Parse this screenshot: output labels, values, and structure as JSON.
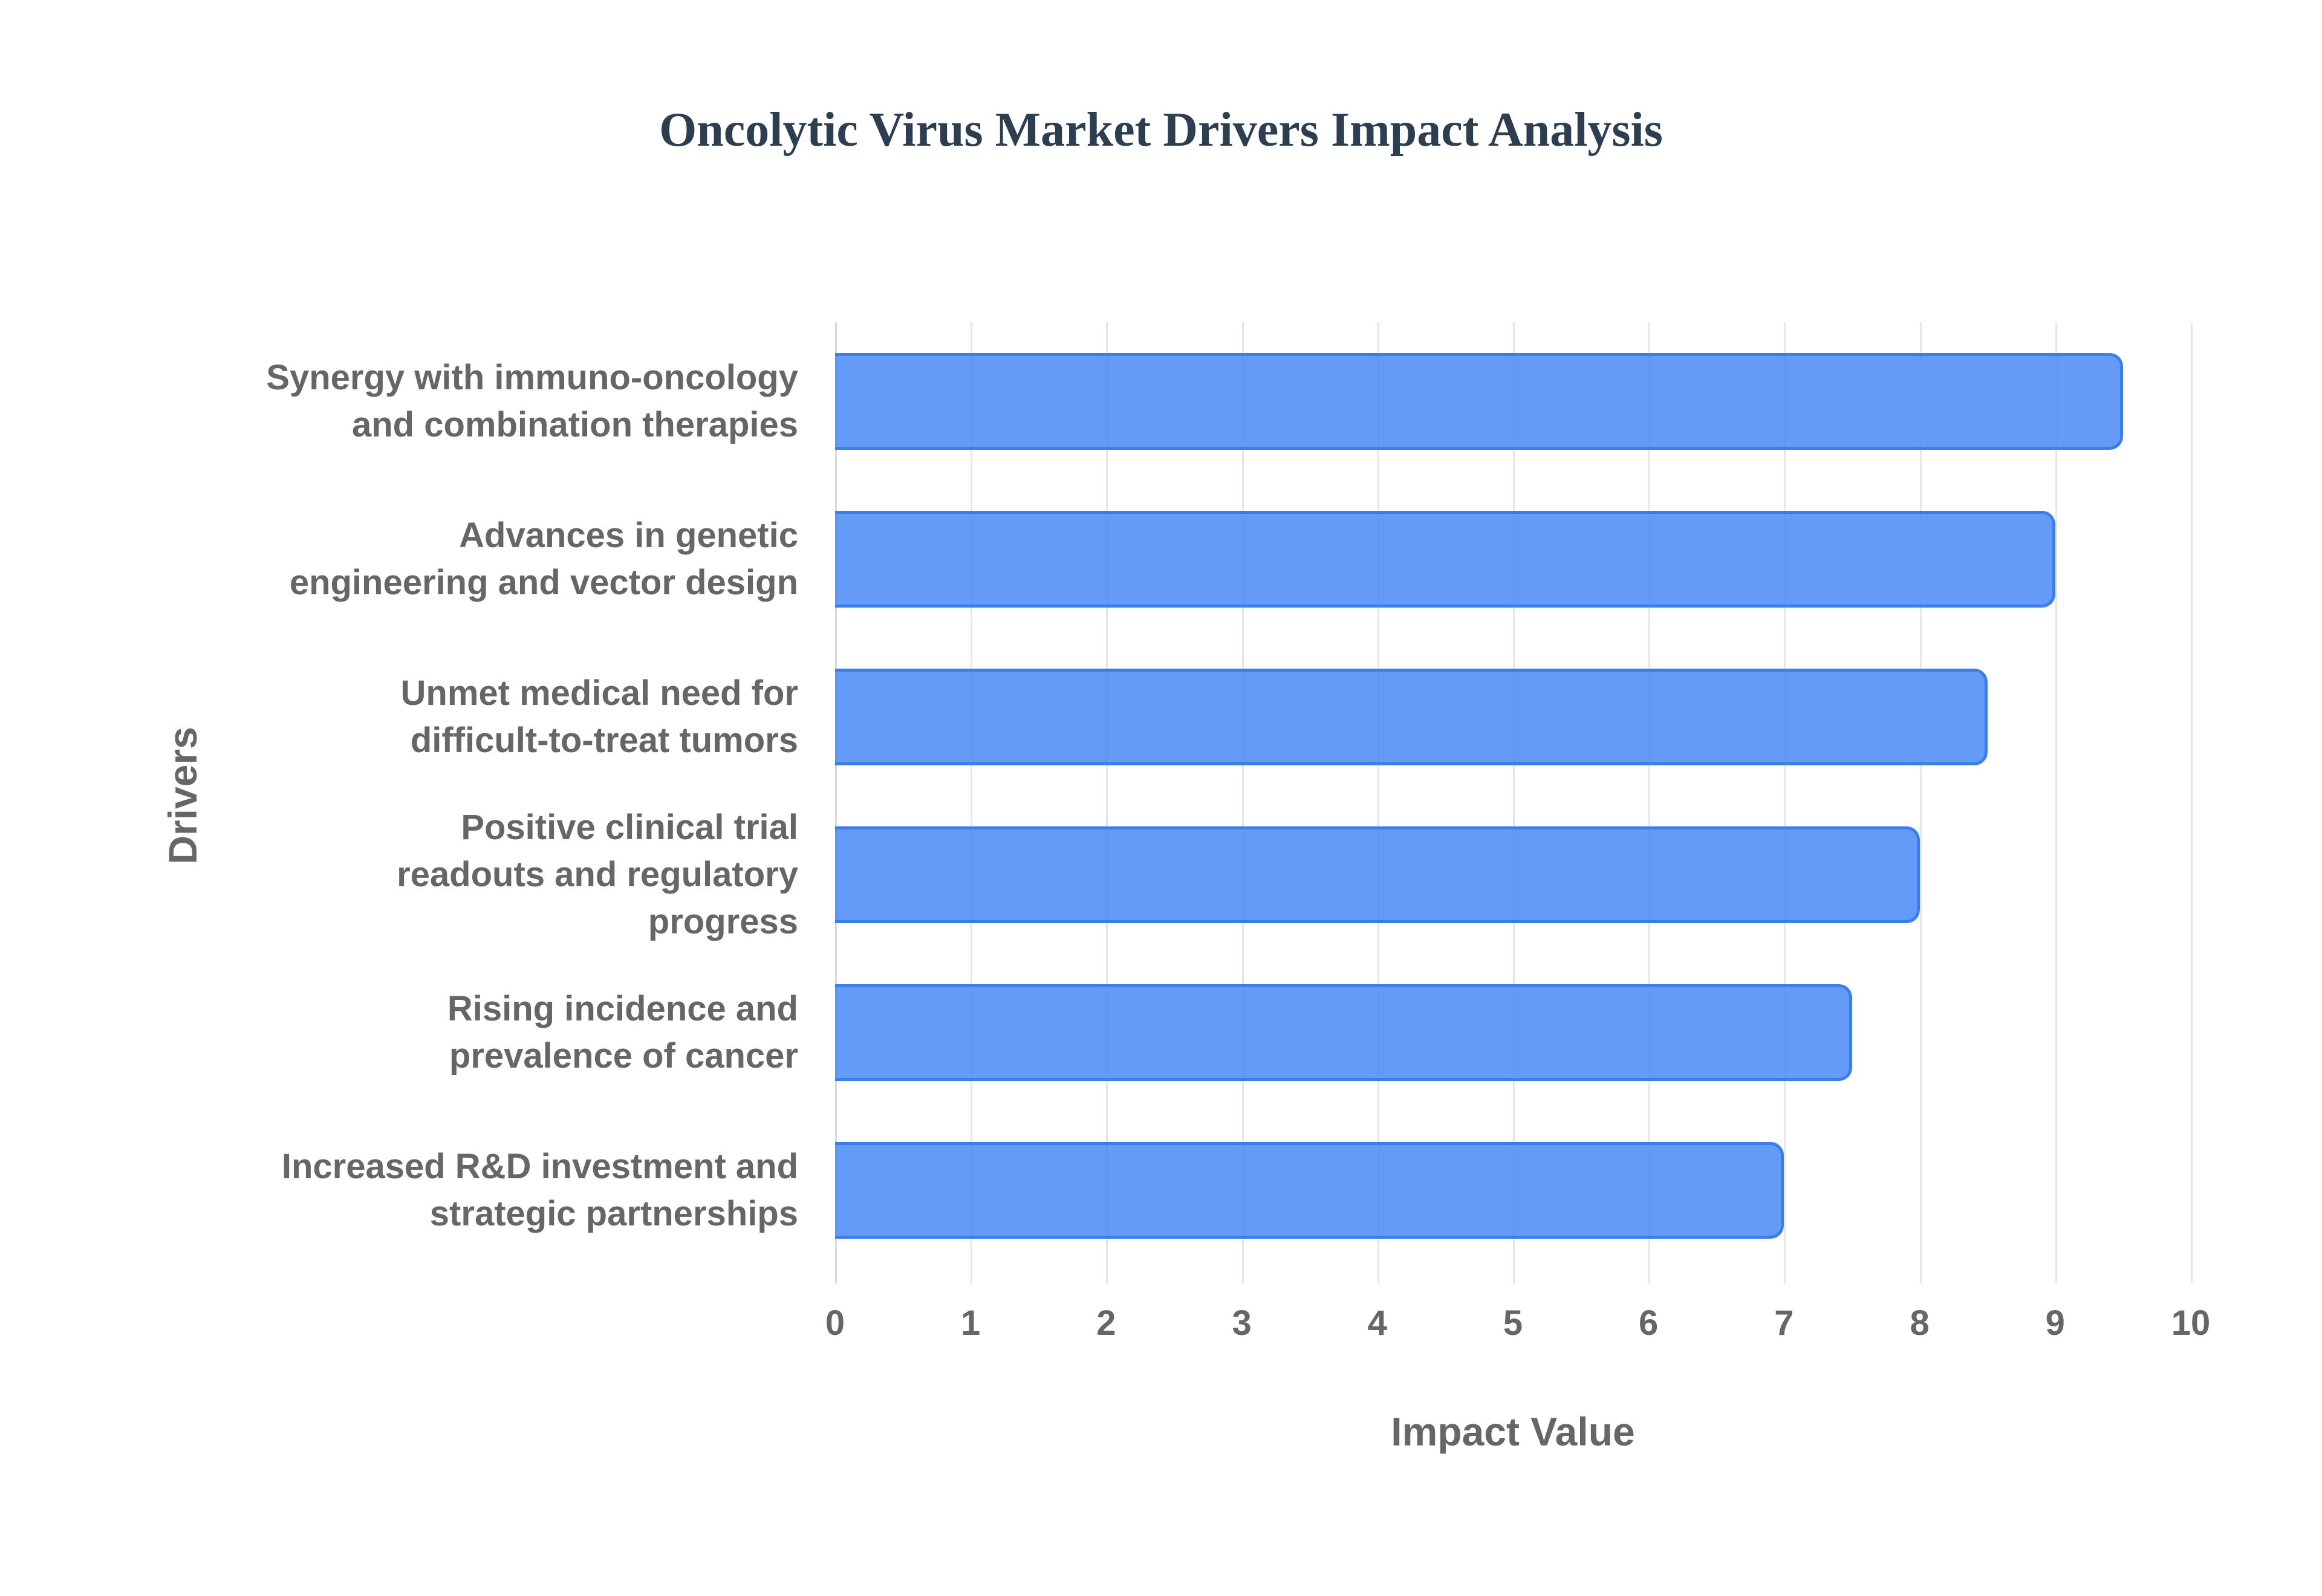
{
  "chart": {
    "title": "Oncolytic Virus Market Drivers Impact Analysis",
    "xlabel": "Impact Value",
    "ylabel": "Drivers",
    "bar_color": "#4285f4",
    "bar_border_color": "#3b7deb",
    "x_ticks": [
      "0",
      "1",
      "2",
      "3",
      "4",
      "5",
      "6",
      "7",
      "8",
      "9",
      "10"
    ],
    "bars": [
      {
        "label_lines": [
          "Synergy with immuno-oncology",
          "and combination therapies"
        ],
        "value": 9.5
      },
      {
        "label_lines": [
          "Advances in genetic",
          "engineering and vector design"
        ],
        "value": 9
      },
      {
        "label_lines": [
          "Unmet medical need for",
          "difficult-to-treat tumors"
        ],
        "value": 8.5
      },
      {
        "label_lines": [
          "Positive clinical trial",
          "readouts and regulatory",
          "progress"
        ],
        "value": 8
      },
      {
        "label_lines": [
          "Rising incidence and",
          "prevalence of cancer"
        ],
        "value": 7.5
      },
      {
        "label_lines": [
          "Increased R&D investment and",
          "strategic partnerships"
        ],
        "value": 7
      }
    ]
  },
  "chart_data": {
    "type": "bar",
    "orientation": "horizontal",
    "title": "Oncolytic Virus Market Drivers Impact Analysis",
    "xlabel": "Impact Value",
    "ylabel": "Drivers",
    "categories": [
      "Synergy with immuno-oncology and combination therapies",
      "Advances in genetic engineering and vector design",
      "Unmet medical need for difficult-to-treat tumors",
      "Positive clinical trial readouts and regulatory progress",
      "Rising incidence and prevalence of cancer",
      "Increased R&D investment and strategic partnerships"
    ],
    "values": [
      9.5,
      9,
      8.5,
      8,
      7.5,
      7
    ],
    "xlim": [
      0,
      10
    ],
    "x_ticks": [
      0,
      1,
      2,
      3,
      4,
      5,
      6,
      7,
      8,
      9,
      10
    ],
    "grid": true,
    "legend": null
  }
}
